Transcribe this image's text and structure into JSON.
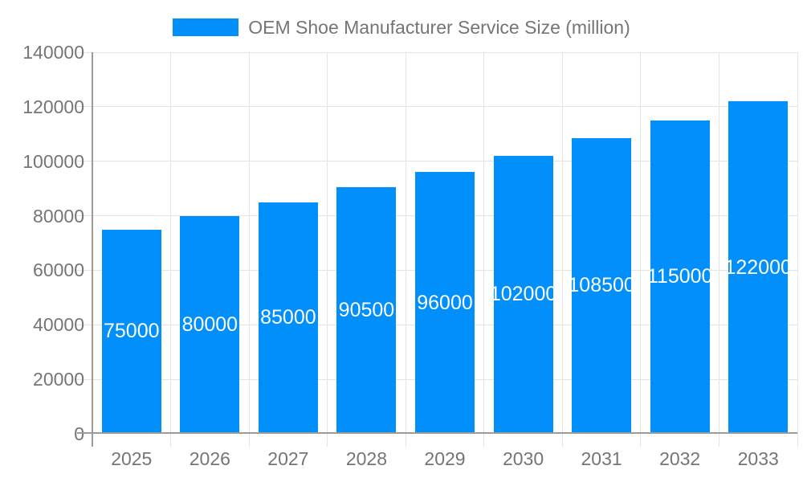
{
  "chart_data": {
    "type": "bar",
    "title": "OEM Shoe Manufacturer Service Size (million)",
    "categories": [
      "2025",
      "2026",
      "2027",
      "2028",
      "2029",
      "2030",
      "2031",
      "2032",
      "2033"
    ],
    "values": [
      75000,
      80000,
      85000,
      90500,
      96000,
      102000,
      108500,
      115000,
      122000
    ],
    "series": [
      {
        "name": "OEM Shoe Manufacturer Service Size (million)",
        "values": [
          75000,
          80000,
          85000,
          90500,
          96000,
          102000,
          108500,
          115000,
          122000
        ]
      }
    ],
    "xlabel": "",
    "ylabel": "",
    "ylim": [
      0,
      140000
    ],
    "yticks": [
      0,
      20000,
      40000,
      60000,
      80000,
      100000,
      120000,
      140000
    ],
    "grid": "on",
    "legend_position": "top-center",
    "bar_value_labels_inside": true
  },
  "colors": {
    "bar": "#008ffb",
    "grid": "#e4e4e4",
    "axis": "#9b9b9b",
    "tick_text": "#757575",
    "bar_label_text": "#ffffff",
    "background": "#ffffff"
  }
}
